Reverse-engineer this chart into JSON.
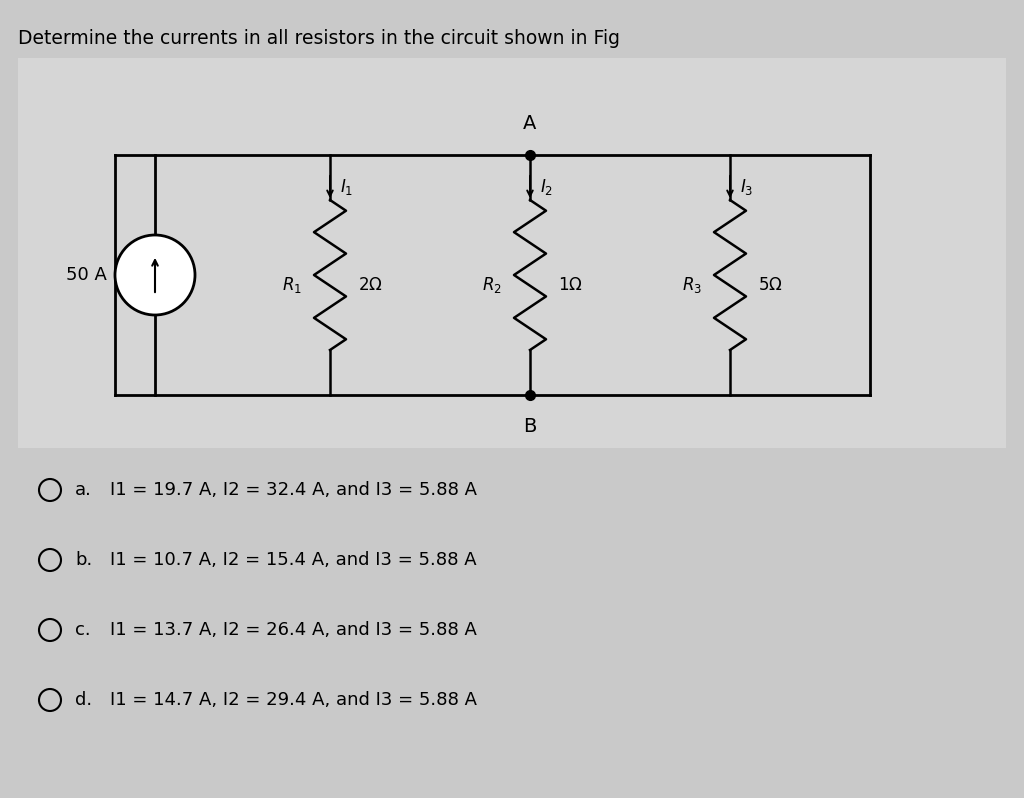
{
  "title": "Determine the currents in all resistors in the circuit shown in Fig",
  "background_color": "#c9c9c9",
  "circuit_bg": "#d8d8d8",
  "options": [
    {
      "label": "a.",
      "text": "I1 = 19.7 A, I2 = 32.4 A, and I3 = 5.88 A"
    },
    {
      "label": "b.",
      "text": "I1 = 10.7 A, I2 = 15.4 A, and I3 = 5.88 A"
    },
    {
      "label": "c.",
      "text": "I1 = 13.7 A, I2 = 26.4 A, and I3 = 5.88 A"
    },
    {
      "label": "d.",
      "text": "I1 = 14.7 A, I2 = 29.4 A, and I3 = 5.88 A"
    }
  ],
  "source_label": "50 A",
  "node_a": "A",
  "node_b": "B",
  "r1_name": "R₁",
  "r1_val": "2Ω",
  "r1_curr": "I₁",
  "r2_name": "R₂",
  "r2_val": "1Ω",
  "r2_curr": "I₂",
  "r3_name": "R₃",
  "r3_val": "5Ω",
  "r3_curr": "I₃"
}
